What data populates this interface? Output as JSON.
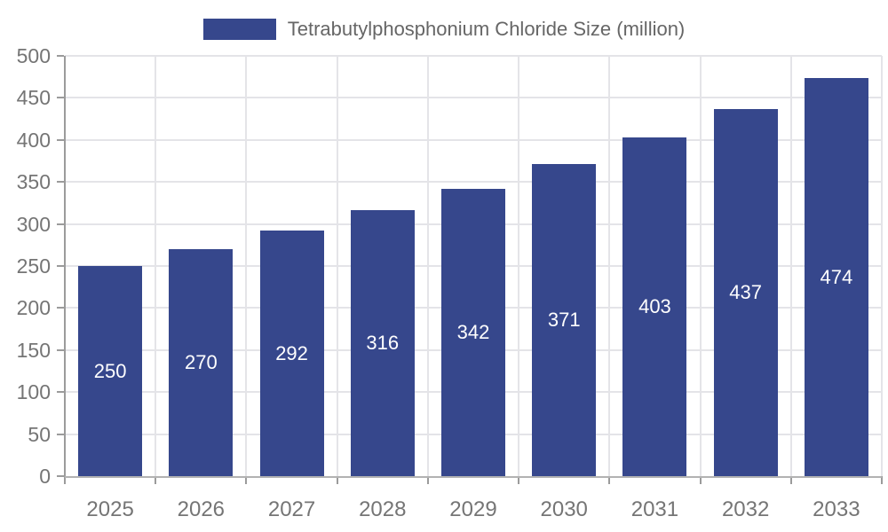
{
  "chart_data": {
    "type": "bar",
    "title": "Tetrabutylphosphonium Chloride Size (million)",
    "legend": {
      "label": "Tetrabutylphosphonium Chloride Size (million)",
      "position": "top"
    },
    "categories": [
      "2025",
      "2026",
      "2027",
      "2028",
      "2029",
      "2030",
      "2031",
      "2032",
      "2033"
    ],
    "values": [
      250,
      270,
      292,
      316,
      342,
      371,
      403,
      437,
      474
    ],
    "xlabel": "",
    "ylabel": "",
    "ylim": [
      0,
      500
    ],
    "ytick_step": 50,
    "ytick_labels": [
      "0",
      "50",
      "100",
      "150",
      "200",
      "250",
      "300",
      "350",
      "400",
      "450",
      "500"
    ],
    "grid": true,
    "value_labels_shown": true,
    "colors": {
      "bar": "#36478C",
      "grid": "#e4e4e8",
      "y_axis_line": "#9b9b9b",
      "x_axis_line": "#b2b2b2",
      "tick": "#9b9b9b",
      "tick_label": "#757575",
      "legend_text": "#666666",
      "value_label": "#ffffff",
      "background": "#ffffff"
    }
  }
}
